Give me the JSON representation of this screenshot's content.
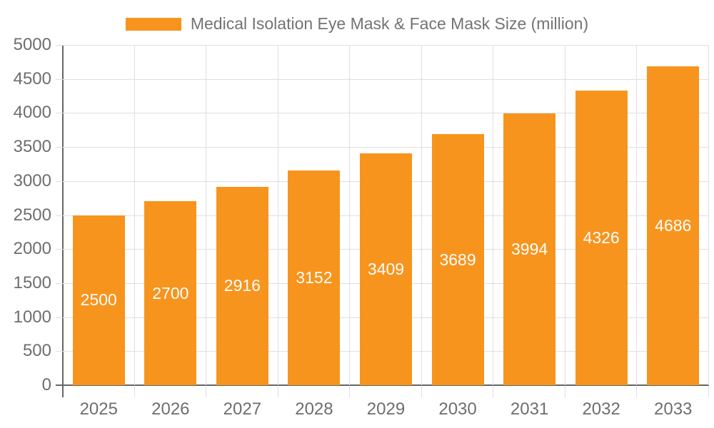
{
  "legend": {
    "label": "Medical Isolation Eye Mask & Face Mask Size (million)"
  },
  "colors": {
    "bar": "#F7941E",
    "bar_label": "#FFFFFF",
    "gridline": "#DFDFDF",
    "axis_line": "#666666",
    "axis_text": "#6E6E6E",
    "legend_text": "#737373",
    "background": "#FFFFFF"
  },
  "chart_data": {
    "type": "bar",
    "title": "Medical Isolation Eye Mask & Face Mask Size (million)",
    "categories": [
      "2025",
      "2026",
      "2027",
      "2028",
      "2029",
      "2030",
      "2031",
      "2032",
      "2033"
    ],
    "values": [
      2500,
      2700,
      2916,
      3152,
      3409,
      3689,
      3994,
      4326,
      4686
    ],
    "xlabel": "",
    "ylabel": "",
    "ylim": [
      0,
      5000
    ],
    "ytick_step": 500,
    "yticks": [
      0,
      500,
      1000,
      1500,
      2000,
      2500,
      3000,
      3500,
      4000,
      4500,
      5000
    ],
    "grid": true,
    "legend_position": "top-center",
    "value_labels": "inside-center-white"
  }
}
